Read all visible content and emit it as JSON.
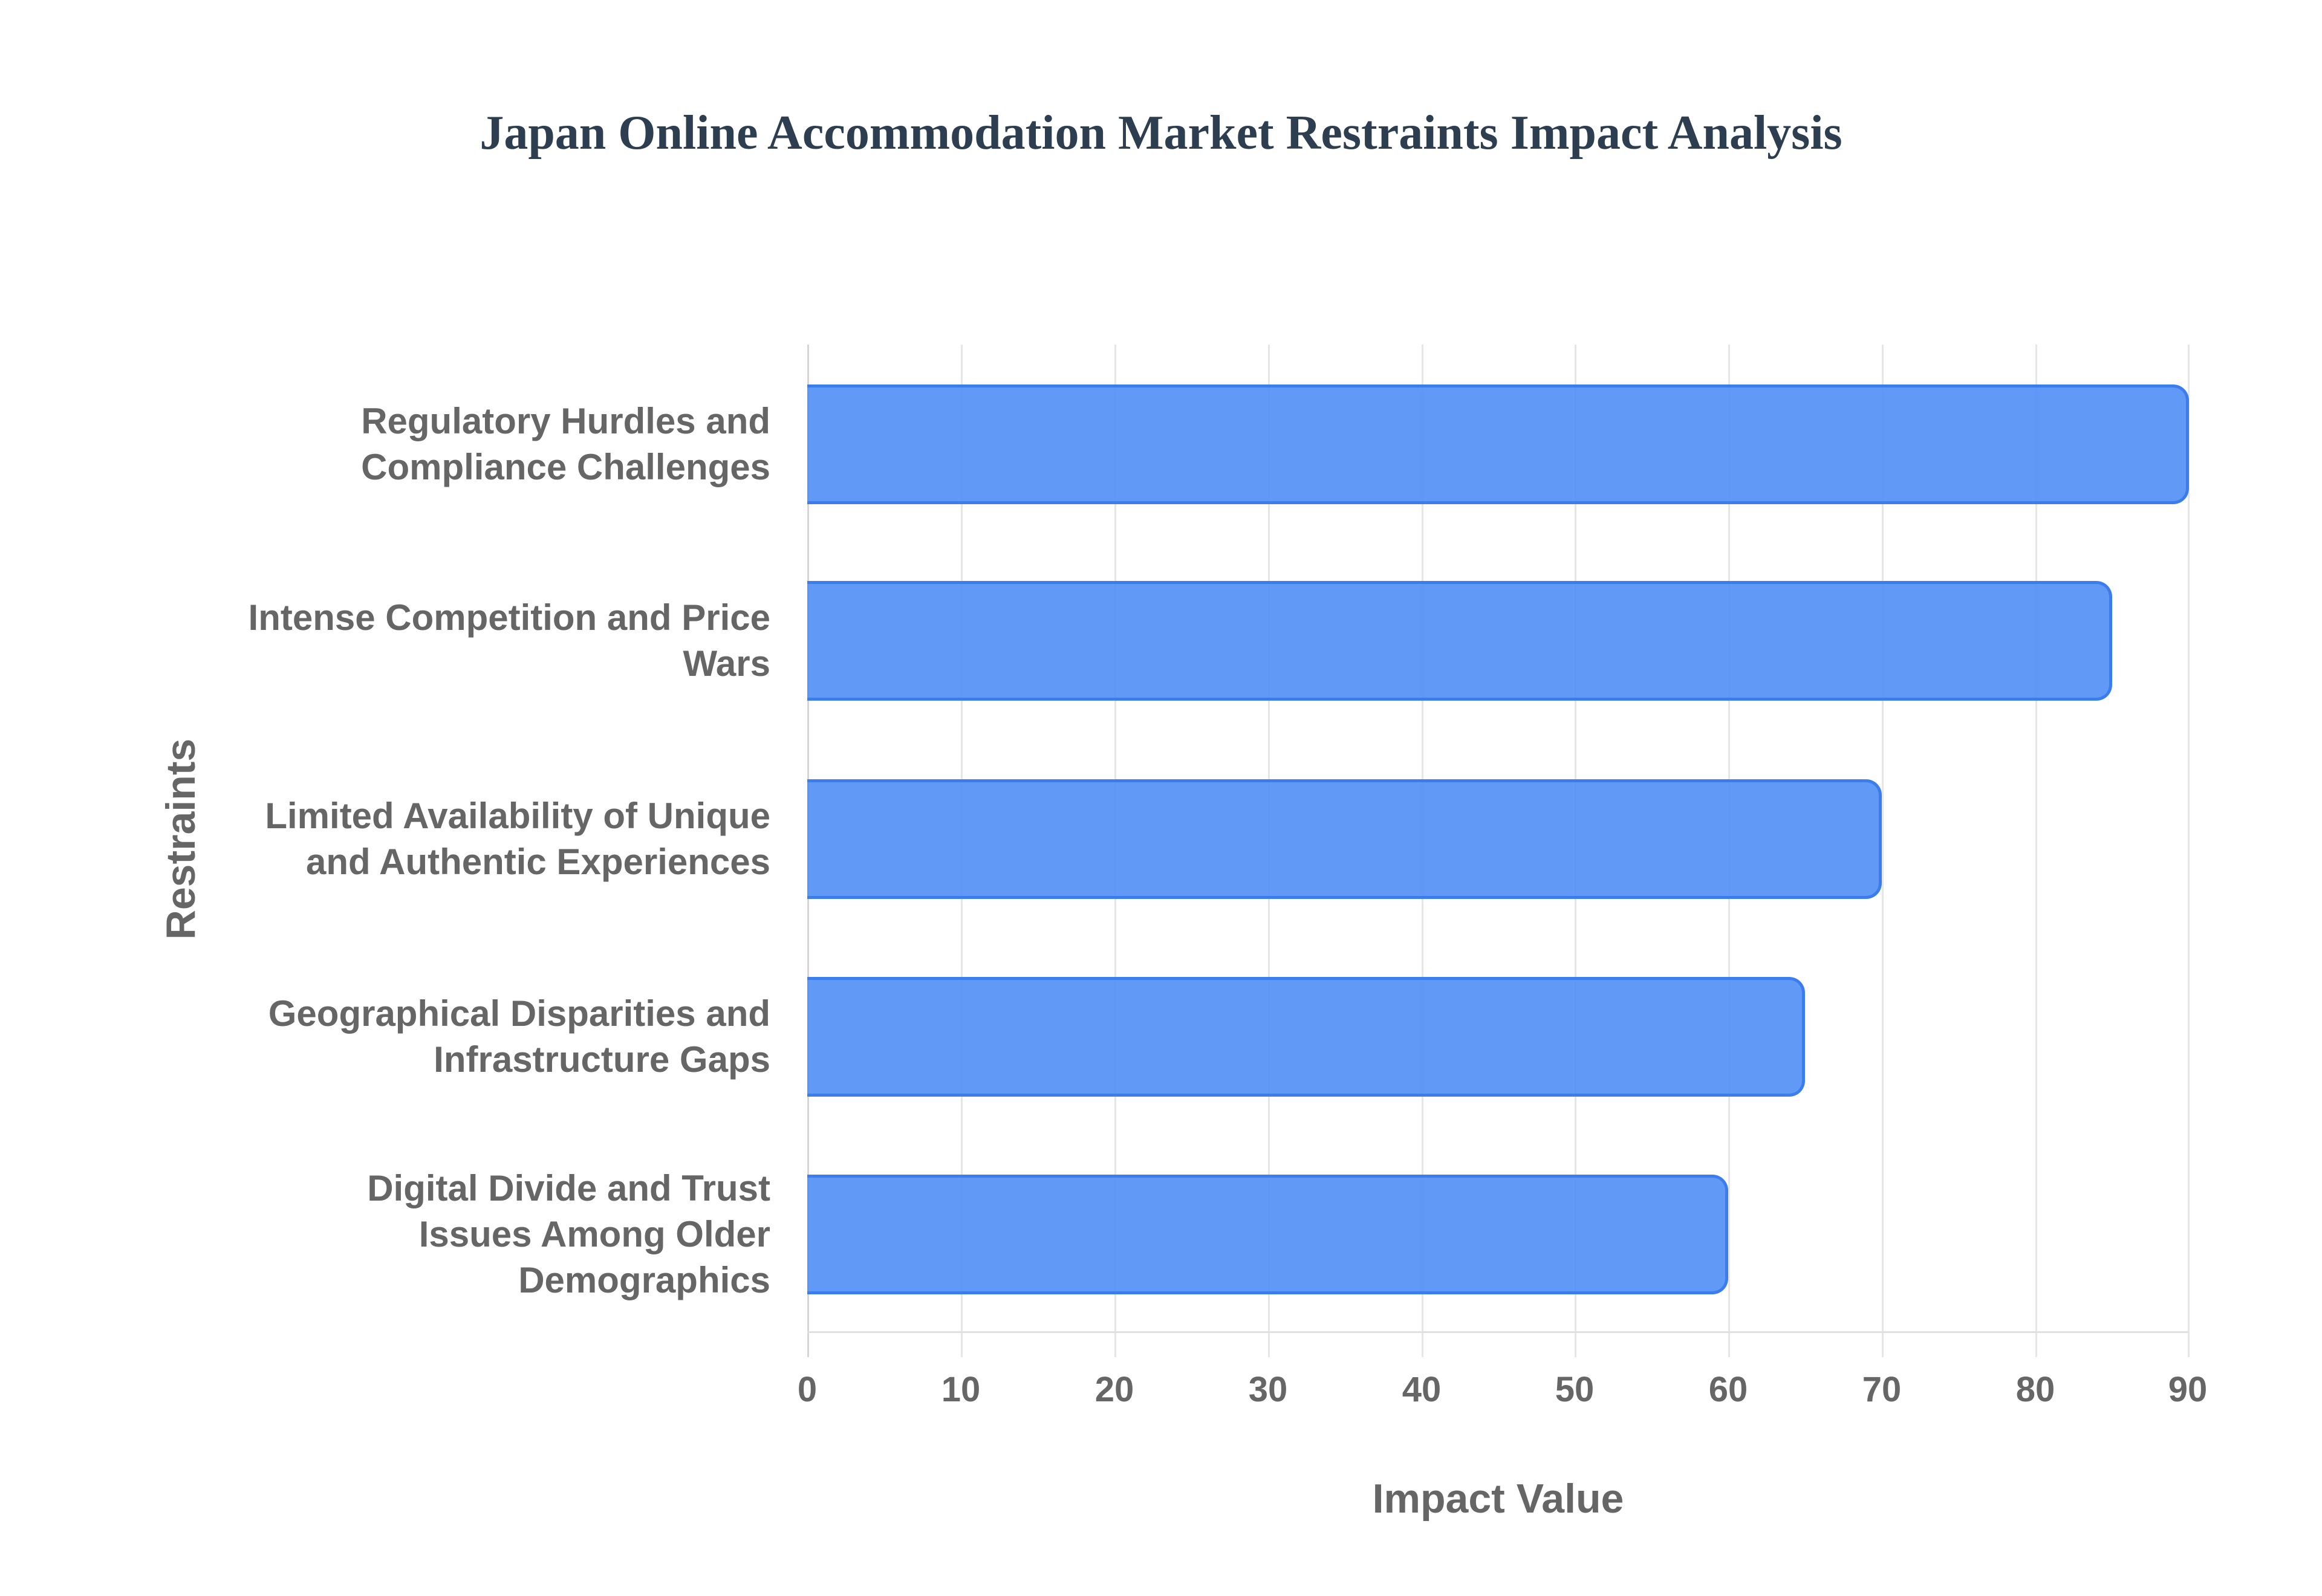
{
  "title": "Japan Online Accommodation Market Restraints Impact Analysis",
  "x_axis": {
    "title": "Impact Value",
    "ticks": [
      "0",
      "10",
      "20",
      "30",
      "40",
      "50",
      "60",
      "70",
      "80",
      "90"
    ]
  },
  "y_axis": {
    "title": "Restraints"
  },
  "bars": [
    {
      "label": "Regulatory Hurdles and\nCompliance Challenges",
      "value": 90
    },
    {
      "label": "Intense Competition and Price\nWars",
      "value": 85
    },
    {
      "label": "Limited Availability of Unique\nand Authentic Experiences",
      "value": 70
    },
    {
      "label": "Geographical Disparities and\nInfrastructure Gaps",
      "value": 65
    },
    {
      "label": "Digital Divide and Trust\nIssues Among Older\nDemographics",
      "value": 60
    }
  ],
  "colors": {
    "bar_fill": "#5b94f3",
    "bar_border": "#3b7ded",
    "title": "#2c3e50",
    "axis_text": "#666666",
    "grid": "#e6e6e6"
  },
  "chart_data": {
    "type": "bar",
    "orientation": "horizontal",
    "title": "Japan Online Accommodation Market Restraints Impact Analysis",
    "xlabel": "Impact Value",
    "ylabel": "Restraints",
    "categories": [
      "Regulatory Hurdles and Compliance Challenges",
      "Intense Competition and Price Wars",
      "Limited Availability of Unique and Authentic Experiences",
      "Geographical Disparities and Infrastructure Gaps",
      "Digital Divide and Trust Issues Among Older Demographics"
    ],
    "values": [
      90,
      85,
      70,
      65,
      60
    ],
    "xlim": [
      0,
      90
    ],
    "xticks": [
      0,
      10,
      20,
      30,
      40,
      50,
      60,
      70,
      80,
      90
    ],
    "grid": true,
    "legend": null
  }
}
